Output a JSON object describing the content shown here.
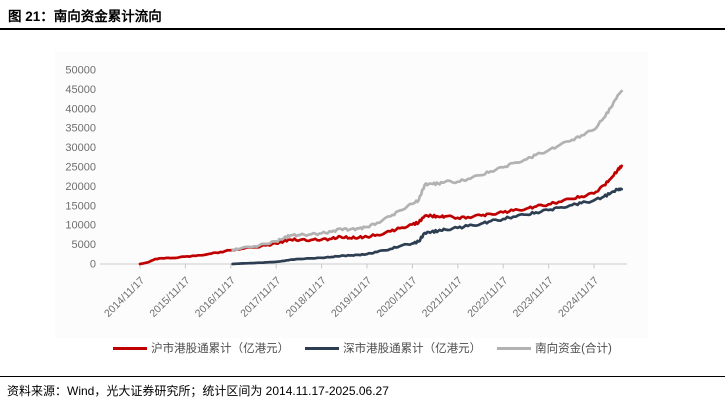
{
  "header": {
    "title": "图 21：南向资金累计流向"
  },
  "footer": {
    "source": "资料来源：Wind，光大证券研究所；统计区间为 2014.11.17-2025.06.27"
  },
  "chart_data": {
    "type": "line",
    "title": "南向资金累计流向",
    "xlabel": "",
    "ylabel": "",
    "ylim": [
      0,
      50000
    ],
    "yticks": [
      0,
      5000,
      10000,
      15000,
      20000,
      25000,
      30000,
      35000,
      40000,
      45000,
      50000
    ],
    "xtick_labels": [
      "2014/11/17",
      "2015/11/17",
      "2016/11/17",
      "2017/11/17",
      "2018/11/17",
      "2019/11/17",
      "2020/11/17",
      "2021/11/17",
      "2022/11/17",
      "2023/11/17",
      "2024/11/17"
    ],
    "x_unit": "decimal_year",
    "grid": false,
    "legend_position": "bottom",
    "axis_color": "#d6d6d6",
    "tick_label_color": "#6e6e6e",
    "plot_bg_color": "#fcfcfc",
    "x": [
      2014.88,
      2015.05,
      2015.2,
      2015.35,
      2015.6,
      2015.88,
      2016.1,
      2016.4,
      2016.65,
      2016.92,
      2017.1,
      2017.4,
      2017.65,
      2017.88,
      2018.05,
      2018.2,
      2018.4,
      2018.65,
      2018.88,
      2019.1,
      2019.3,
      2019.5,
      2019.7,
      2019.88,
      2020.1,
      2020.4,
      2020.6,
      2020.88,
      2021.02,
      2021.15,
      2021.3,
      2021.45,
      2021.6,
      2021.88,
      2022.1,
      2022.4,
      2022.6,
      2022.88,
      2023.1,
      2023.4,
      2023.6,
      2023.88,
      2024.1,
      2024.4,
      2024.6,
      2024.88,
      2025.1,
      2025.25,
      2025.4,
      2025.49
    ],
    "series": [
      {
        "id": "sh-connect",
        "name": "沪市港股通累计（亿港元）",
        "color": "#c00000",
        "values": [
          0,
          400,
          1200,
          1500,
          1550,
          1900,
          2100,
          2600,
          3100,
          3600,
          3900,
          4300,
          4800,
          5300,
          5900,
          6300,
          6150,
          6200,
          6300,
          6500,
          7000,
          6700,
          6800,
          7000,
          7500,
          8400,
          9200,
          10200,
          10700,
          12400,
          12400,
          12200,
          12300,
          11900,
          12100,
          12500,
          12900,
          13300,
          13800,
          14300,
          14800,
          15400,
          16000,
          16800,
          17400,
          18200,
          20300,
          22000,
          24200,
          25300
        ]
      },
      {
        "id": "sz-connect",
        "name": "深市港股通累计（亿港元）",
        "color": "#2d3e52",
        "values": [
          null,
          null,
          null,
          null,
          null,
          null,
          null,
          null,
          null,
          0,
          130,
          260,
          400,
          550,
          800,
          1100,
          1300,
          1450,
          1600,
          1800,
          2100,
          2200,
          2350,
          2550,
          3100,
          3900,
          4600,
          5300,
          5800,
          8000,
          8300,
          8500,
          8900,
          9300,
          9800,
          10400,
          11000,
          11600,
          12200,
          12700,
          13300,
          13900,
          14500,
          15200,
          15700,
          16400,
          17400,
          18300,
          19200,
          19300
        ]
      },
      {
        "id": "southbound-total",
        "name": "南向资金(合计)",
        "color": "#b2b2b2",
        "values": [
          null,
          null,
          null,
          null,
          null,
          null,
          null,
          null,
          null,
          3600,
          4030,
          4560,
          5200,
          5850,
          6700,
          7400,
          7450,
          7650,
          7900,
          8300,
          9100,
          8900,
          9150,
          9550,
          10600,
          12300,
          13800,
          15500,
          16500,
          20400,
          20700,
          20700,
          21200,
          21200,
          21900,
          22900,
          23900,
          24900,
          26000,
          27000,
          28100,
          29300,
          30500,
          32000,
          33100,
          34600,
          37700,
          40300,
          43400,
          44600
        ]
      }
    ]
  }
}
